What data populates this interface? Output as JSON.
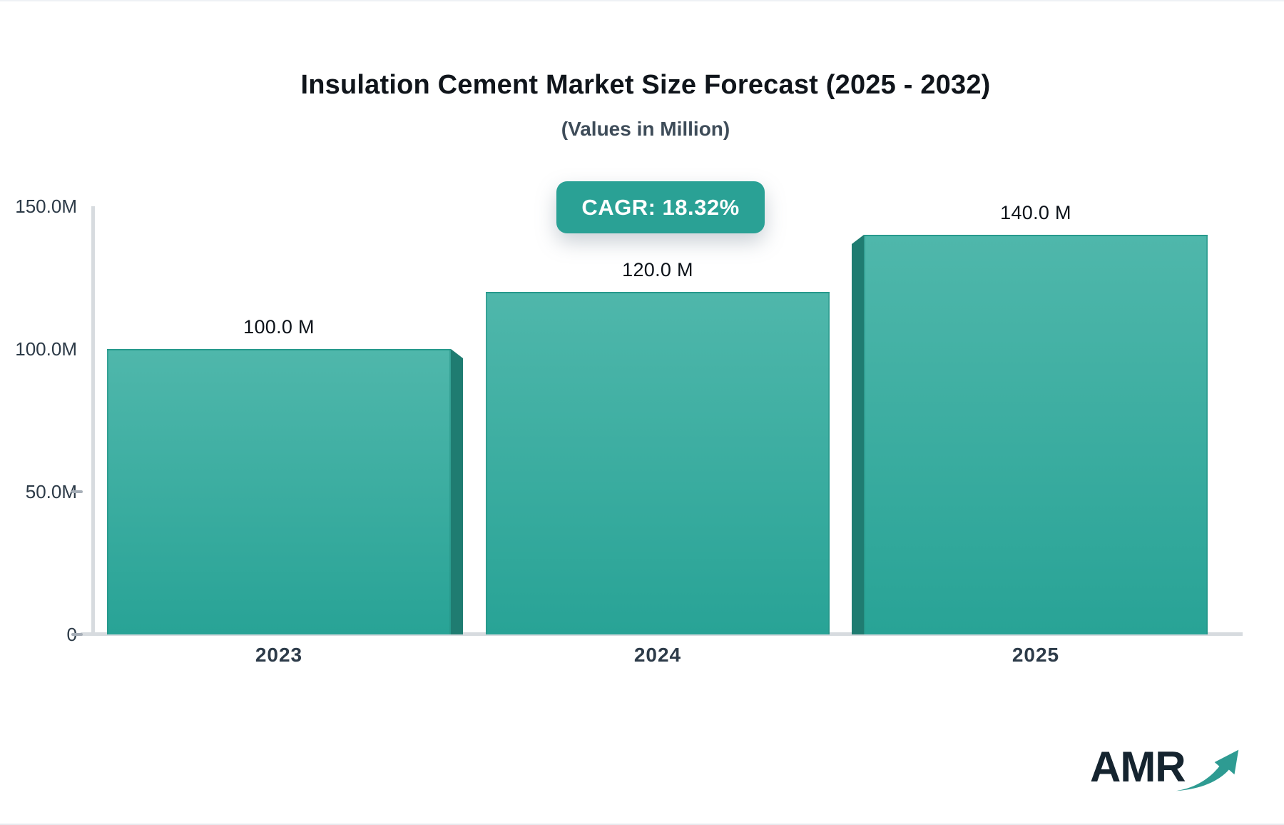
{
  "header": {
    "title": "Insulation Cement Market Size Forecast (2025 - 2032)",
    "subtitle": "(Values in Million)",
    "cagr_badge": "CAGR: 18.32%"
  },
  "chart_data": {
    "type": "bar",
    "title": "Insulation Cement Market Size Forecast (2025 - 2032)",
    "subtitle": "(Values in Million)",
    "categories": [
      "2023",
      "2024",
      "2025"
    ],
    "values": [
      100,
      120,
      140
    ],
    "bar_labels": [
      "100.0 M",
      "120.0 M",
      "140.0 M"
    ],
    "annotation": "CAGR: 18.32%",
    "xlabel": "",
    "ylabel": "",
    "ylim": [
      0,
      150
    ],
    "yticks": {
      "values": [
        150,
        100,
        50,
        0
      ],
      "labels": [
        "150.0M",
        "100.0M",
        "50.0M",
        "0"
      ]
    },
    "grid": "off",
    "legend": "none"
  },
  "colors": {
    "bar_top": "#4fb7ab",
    "bar_bottom": "#28a396",
    "bar_side": "#1f7c71",
    "badge_bg": "#2aa195",
    "axis": "#d7dbdf",
    "title_text": "#10151b",
    "subtitle_text": "#3e4c59",
    "logo_arrow": "#2e9b92"
  },
  "brand": {
    "logo_text": "AMR"
  }
}
